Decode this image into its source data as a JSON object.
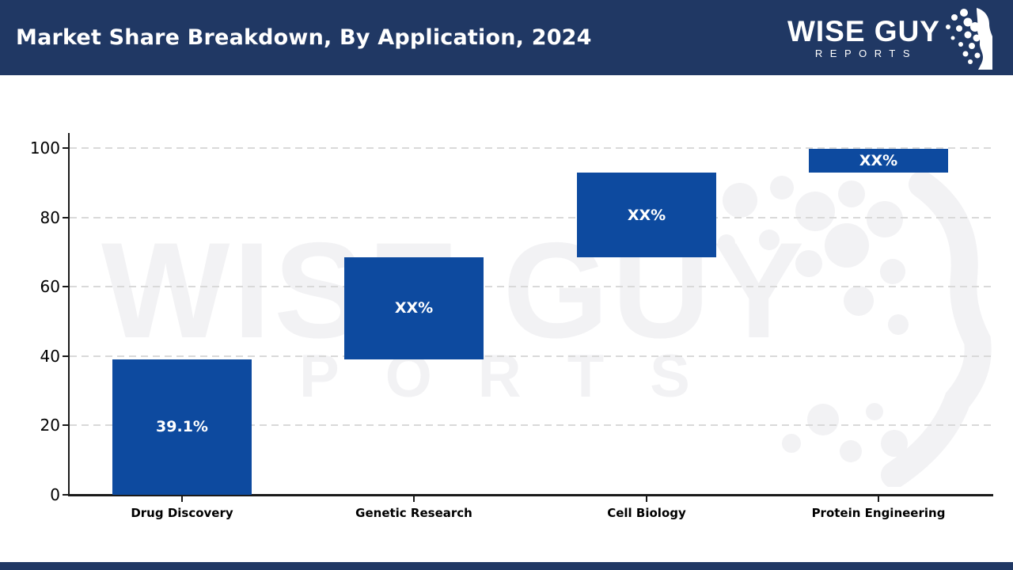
{
  "header": {
    "title": "Market Share Breakdown, By Application, 2024",
    "logo": {
      "line1": "WISE GUY",
      "line2": "REPORTS"
    }
  },
  "watermark": {
    "line1": "WISE GUY",
    "line2": "PORTS"
  },
  "colors": {
    "header_bg": "#203864",
    "footer_bg": "#203864",
    "bar": "#0d4a9f",
    "bar_label": "#ffffff",
    "grid": "#d9d9d9",
    "axis": "#1a1a1a",
    "watermark": "#f2f2f4"
  },
  "chart_data": {
    "type": "bar",
    "subtype": "waterfall",
    "title": "Market Share Breakdown, By Application, 2024",
    "xlabel": "",
    "ylabel": "",
    "ylim": [
      0,
      100
    ],
    "yticks": [
      0,
      20,
      40,
      60,
      80,
      100
    ],
    "grid": "horizontal-dashed",
    "legend": "none",
    "categories": [
      "Drug Discovery",
      "Genetic Research",
      "Cell Biology",
      "Protein Engineering"
    ],
    "bars": [
      {
        "category": "Drug Discovery",
        "start": 0,
        "end": 39.1,
        "label": "39.1%"
      },
      {
        "category": "Genetic Research",
        "start": 39.1,
        "end": 68.5,
        "label": "XX%"
      },
      {
        "category": "Cell Biology",
        "start": 68.5,
        "end": 92.9,
        "label": "XX%"
      },
      {
        "category": "Protein Engineering",
        "start": 92.9,
        "end": 99.8,
        "label": "XX%"
      }
    ]
  }
}
